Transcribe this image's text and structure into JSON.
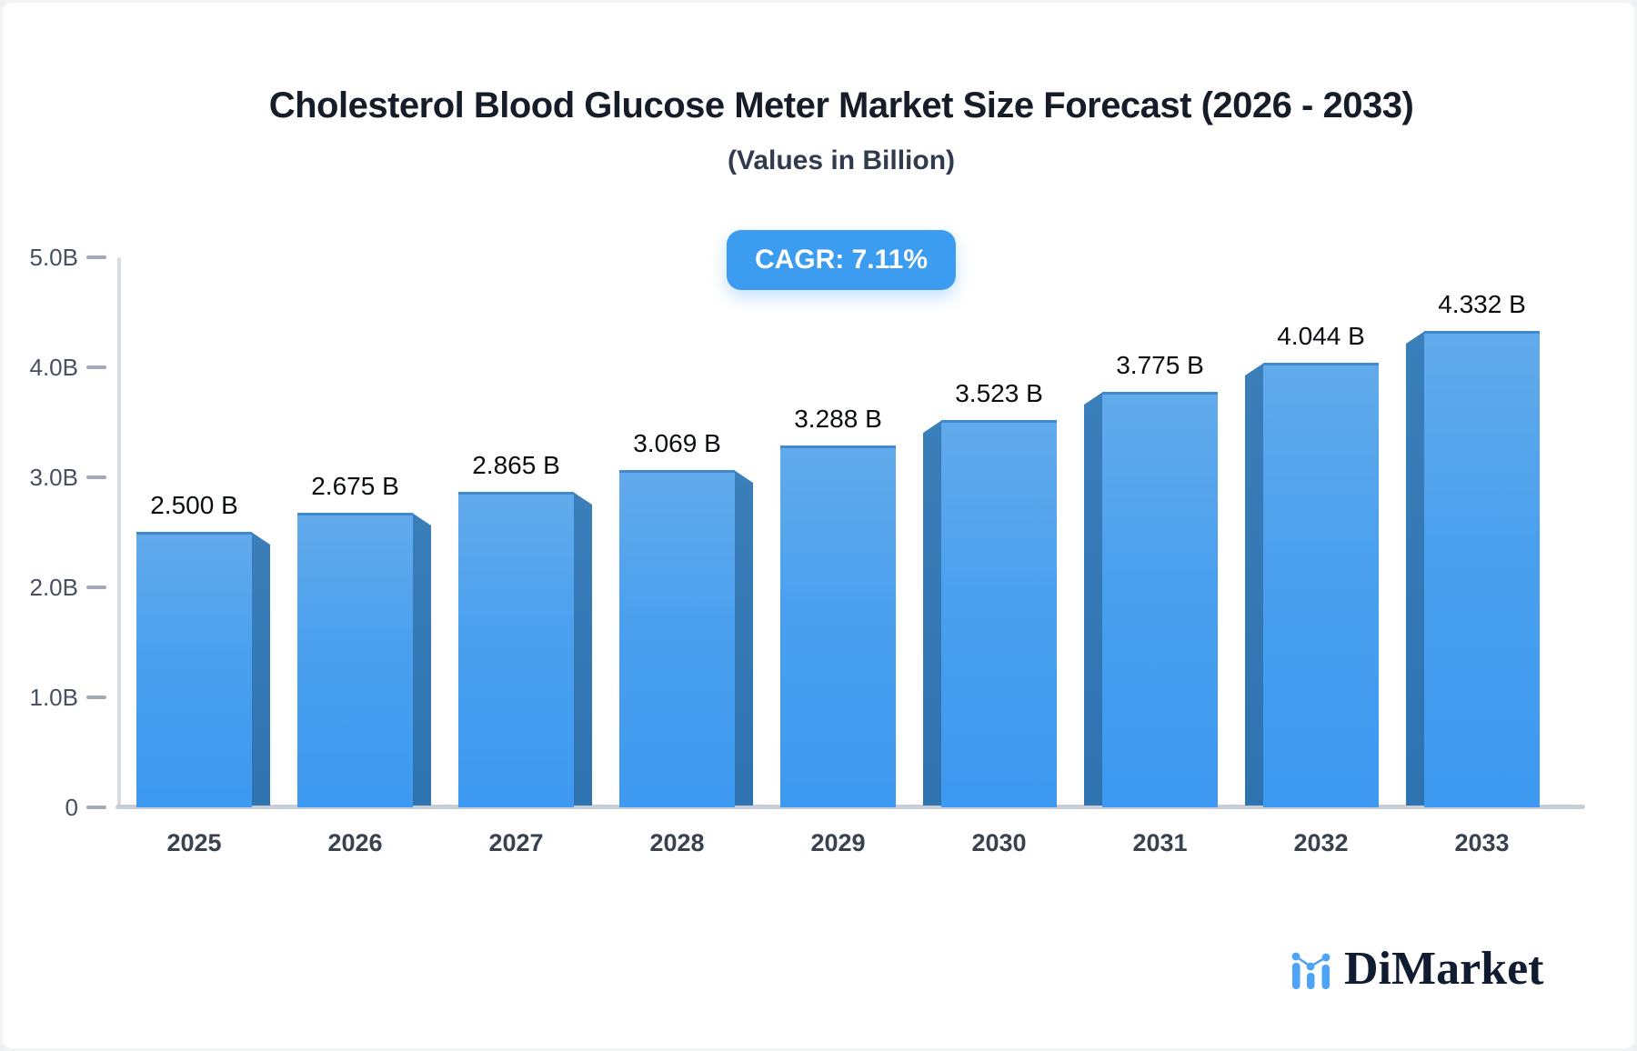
{
  "frame": {
    "background": "#eef0f3",
    "card_background": "#ffffff"
  },
  "header": {
    "title": "Cholesterol Blood Glucose Meter Market Size Forecast (2026 - 2033)",
    "subtitle": "(Values in Billion)",
    "cagr_badge": "CAGR: 7.11%",
    "badge_color": "#3b9cf0"
  },
  "chart_data": {
    "type": "bar",
    "title": "Cholesterol Blood Glucose Meter Market Size Forecast (2026 - 2033)",
    "subtitle": "(Values in Billion)",
    "categories": [
      "2025",
      "2026",
      "2027",
      "2028",
      "2029",
      "2030",
      "2031",
      "2032",
      "2033"
    ],
    "values": [
      2.5,
      2.675,
      2.865,
      3.069,
      3.288,
      3.523,
      3.775,
      4.044,
      4.332
    ],
    "value_labels": [
      "2.500 B",
      "2.675 B",
      "2.865 B",
      "3.069 B",
      "3.288 B",
      "3.523 B",
      "3.775 B",
      "4.044 B",
      "4.332 B"
    ],
    "unit": "Billion",
    "xlabel": "",
    "ylabel": "",
    "ylim": [
      0,
      5.0
    ],
    "y_ticks": [
      {
        "value": 0.0,
        "label": "0"
      },
      {
        "value": 1.0,
        "label": "1.0B"
      },
      {
        "value": 2.0,
        "label": "2.0B"
      },
      {
        "value": 3.0,
        "label": "3.0B"
      },
      {
        "value": 4.0,
        "label": "4.0B"
      },
      {
        "value": 5.0,
        "label": "5.0B"
      }
    ],
    "grid": false,
    "legend": false,
    "bar_colors": {
      "front_top": "#62aaeb",
      "front_bottom": "#3d99f1",
      "side_face": "#2f73b0",
      "top_edge": "#4189cd"
    }
  },
  "footer": {
    "logo_text": "DiMarket",
    "logo_icon": "mini-bar-chart-icon",
    "logo_text_color": "#101c30",
    "logo_accent_color": "#4da3f4"
  }
}
